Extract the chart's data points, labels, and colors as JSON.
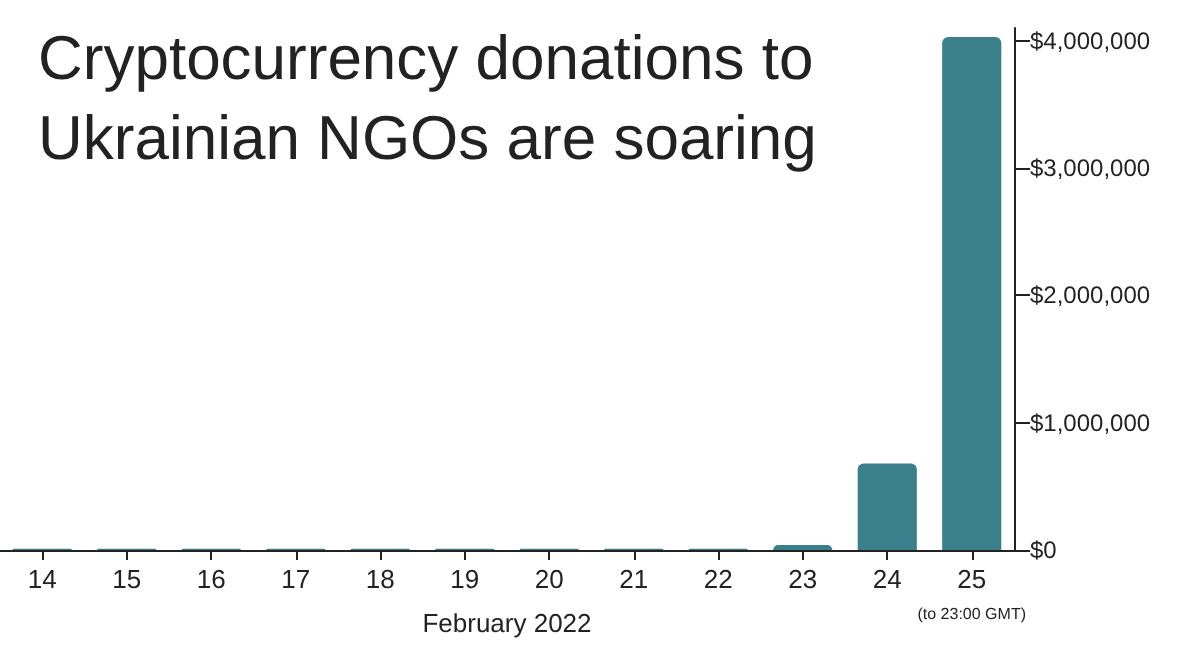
{
  "chart_data": {
    "type": "bar",
    "title": "Cryptocurrency donations to Ukrainian NGOs are soaring",
    "xlabel": "February 2022",
    "categories": [
      "14",
      "15",
      "16",
      "17",
      "18",
      "19",
      "20",
      "21",
      "22",
      "23",
      "24",
      "25"
    ],
    "values": [
      10000,
      10000,
      10000,
      10000,
      10000,
      10000,
      10000,
      10000,
      10000,
      40000,
      680000,
      4030000
    ],
    "color": "#3a7f8a",
    "ylim": [
      0,
      4100000
    ],
    "yticks": [
      {
        "value": 0,
        "label": "$0"
      },
      {
        "value": 1000000,
        "label": "$1,000,000"
      },
      {
        "value": 2000000,
        "label": "$2,000,000"
      },
      {
        "value": 3000000,
        "label": "$3,000,000"
      },
      {
        "value": 4000000,
        "label": "$4,000,000"
      }
    ],
    "annotations": [
      "(to 23:00 GMT)"
    ]
  }
}
